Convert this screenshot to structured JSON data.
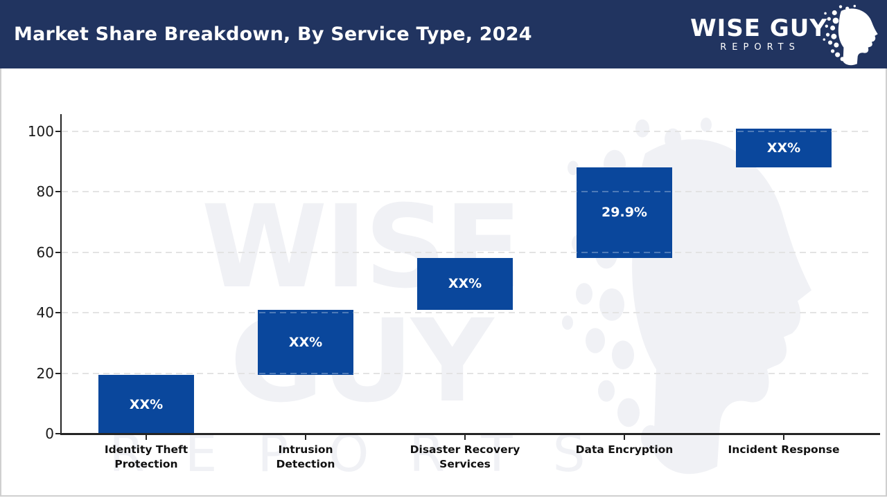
{
  "header": {
    "title": "Market Share Breakdown, By Service Type, 2024",
    "bg_color": "#213460",
    "logo": {
      "wordmark": "WISE GUY",
      "subtitle": "REPORTS"
    }
  },
  "watermark": {
    "line1": "WISE GUY",
    "line2": "REPORTS"
  },
  "chart_data": {
    "type": "bar",
    "variant": "waterfall-floating-segments",
    "title": "Market Share Breakdown, By Service Type, 2024",
    "categories": [
      "Identity Theft Protection",
      "Intrusion Detection",
      "Disaster Recovery Services",
      "Data Encryption",
      "Incident Response"
    ],
    "category_lines": [
      [
        "Identity Theft",
        "Protection"
      ],
      [
        "Intrusion",
        "Detection"
      ],
      [
        "Disaster Recovery",
        "Services"
      ],
      [
        "Data Encryption"
      ],
      [
        "Incident Response"
      ]
    ],
    "segments": [
      {
        "category": "Identity Theft Protection",
        "start": 0,
        "end": 19.4,
        "label": "XX%"
      },
      {
        "category": "Intrusion Detection",
        "start": 19.4,
        "end": 41.0,
        "label": "XX%"
      },
      {
        "category": "Disaster Recovery Services",
        "start": 41.0,
        "end": 58.2,
        "label": "XX%"
      },
      {
        "category": "Data Encryption",
        "start": 58.2,
        "end": 88.1,
        "label": "29.9%"
      },
      {
        "category": "Incident Response",
        "start": 88.1,
        "end": 100.9,
        "label": "XX%"
      }
    ],
    "yticks": [
      0,
      20,
      40,
      60,
      80,
      100
    ],
    "ylim": [
      0,
      105
    ],
    "xlabel": "",
    "ylabel": "",
    "grid": "horizontal-dashed",
    "legend": "none",
    "bar_color": "#0A479C",
    "bar_label_color": "#FFFFFF",
    "axis_color": "#242424",
    "gridline_color": "#D8D8D8"
  }
}
